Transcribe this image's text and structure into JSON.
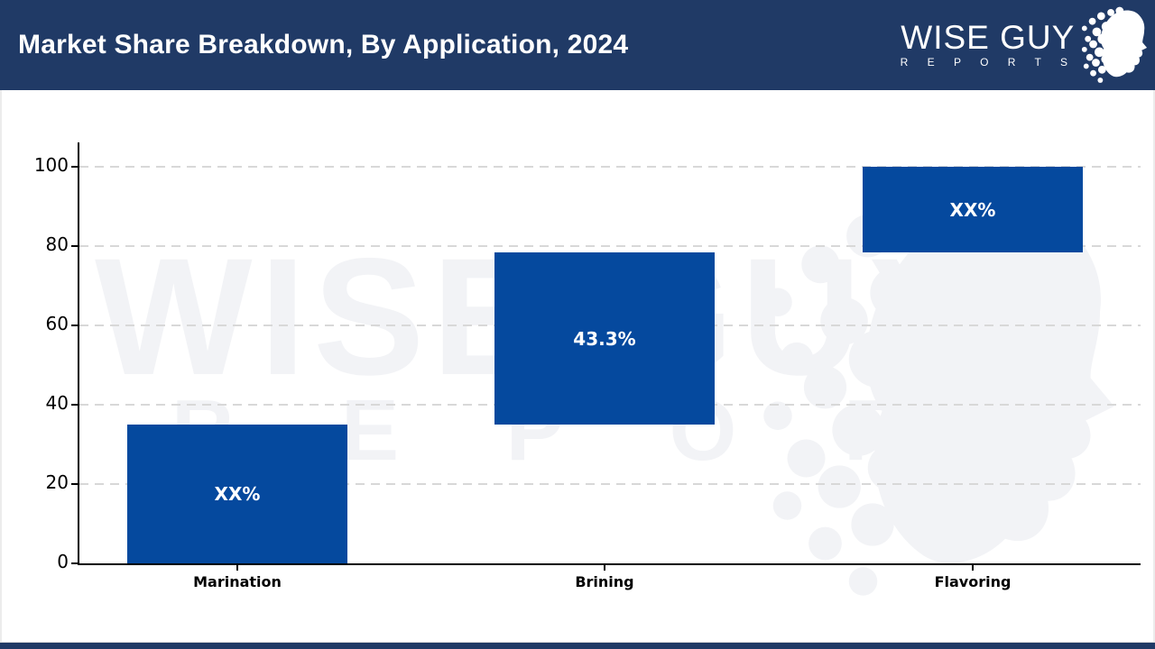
{
  "header": {
    "title": "Market Share Breakdown, By Application, 2024",
    "logo": {
      "line1": "WISE GUY",
      "line2": "R E P O R T S"
    }
  },
  "watermark": {
    "line1": "WISE GUY",
    "line2": "R E P O R T S"
  },
  "chart_data": {
    "type": "bar",
    "subtype": "waterfall",
    "title": "Market Share Breakdown, By Application, 2024",
    "categories": [
      "Marination",
      "Brining",
      "Flavoring"
    ],
    "segments": [
      {
        "category": "Marination",
        "start": 0,
        "end": 35,
        "label": "XX%"
      },
      {
        "category": "Brining",
        "start": 35,
        "end": 78.3,
        "label": "43.3%"
      },
      {
        "category": "Flavoring",
        "start": 78.3,
        "end": 100,
        "label": "XX%"
      }
    ],
    "xlabel": "",
    "ylabel": "",
    "ylim": [
      0,
      100
    ],
    "yticks": [
      0,
      20,
      40,
      60,
      80,
      100
    ],
    "grid": "horizontal-dashed",
    "legend": "none"
  },
  "colors": {
    "header_bg": "#203a66",
    "bar": "#05499e",
    "bar_label": "#ffffff",
    "grid": "#d8d8d8",
    "axis": "#000000",
    "watermark": "#f2f3f6"
  }
}
